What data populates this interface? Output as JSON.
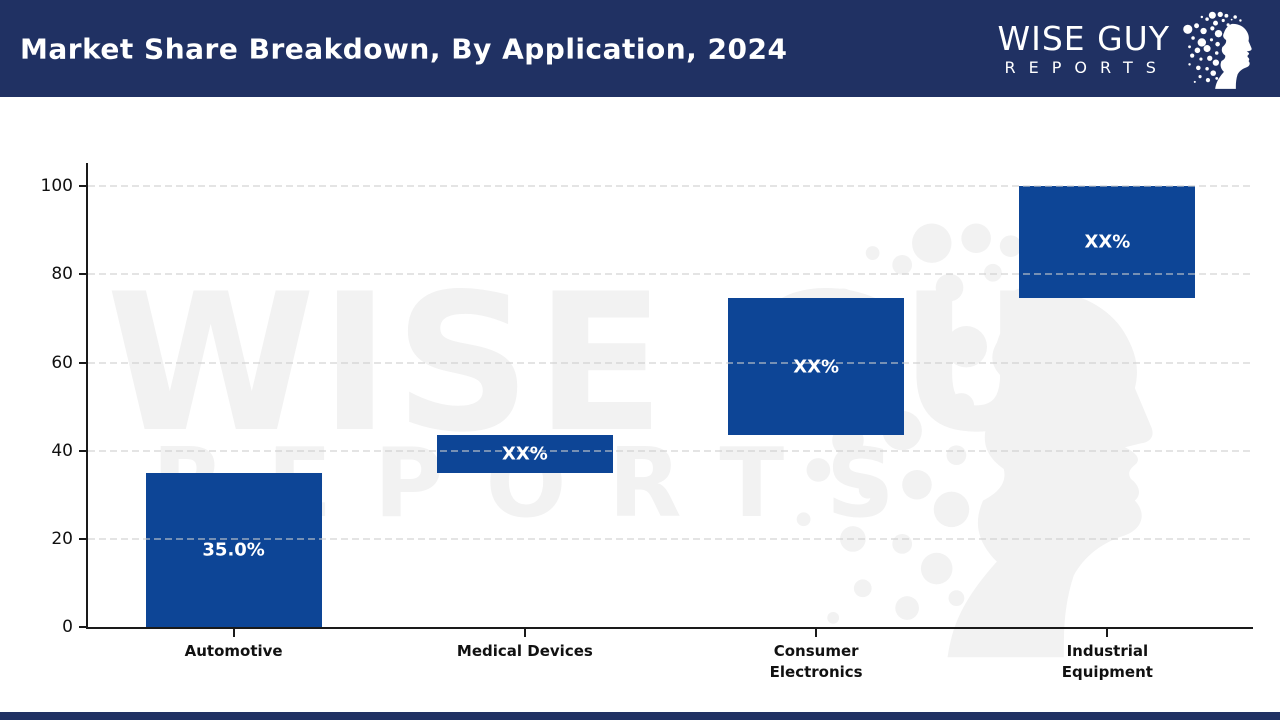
{
  "header": {
    "title": "Market Share Breakdown, By Application, 2024",
    "logo": {
      "line1": "WISE GUY",
      "line2": "REPORTS"
    }
  },
  "watermark": {
    "line1": "WISE GU",
    "line2": "REPORTS"
  },
  "colors": {
    "header_bg": "#203163",
    "footer_bg": "#203163",
    "bar": "#0d4596",
    "bar_label": "#ffffff",
    "watermark": "#f2f2f2",
    "grid": "#e6e6e6",
    "axis": "#1a1a1a"
  },
  "chart_data": {
    "type": "bar",
    "subtype": "waterfall",
    "title": "Market Share Breakdown, By Application, 2024",
    "xlabel": "",
    "ylabel": "",
    "ylim": [
      0,
      100
    ],
    "yticks": [
      0,
      20,
      40,
      60,
      80,
      100
    ],
    "grid": "horizontal-dashed",
    "legend": "none",
    "categories": [
      "Automotive",
      "Medical Devices",
      "Consumer Electronics",
      "Industrial Equipment"
    ],
    "segments": [
      {
        "category": "Automotive",
        "start": 0,
        "end": 35,
        "label": "35.0%"
      },
      {
        "category": "Medical Devices",
        "start": 35,
        "end": 43.5,
        "label": "XX%"
      },
      {
        "category": "Consumer Electronics",
        "start": 43.5,
        "end": 74.7,
        "label": "XX%"
      },
      {
        "category": "Industrial Equipment",
        "start": 74.7,
        "end": 100,
        "label": "XX%"
      }
    ]
  }
}
